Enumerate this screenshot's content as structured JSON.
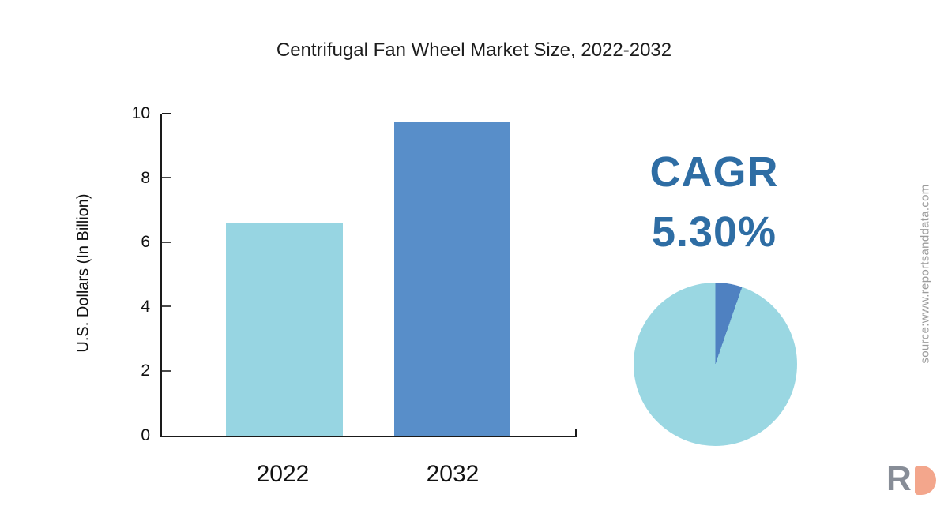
{
  "title": "Centrifugal Fan Wheel Market Size, 2022-2032",
  "cagr": {
    "label": "CAGR",
    "value": "5.30%"
  },
  "source": "source:www.reportsanddata.com",
  "logo": {
    "letter": "R"
  },
  "colors": {
    "bar_2022": "#97d5e2",
    "bar_2032": "#588ec9",
    "pie_slice": "#4f81c1",
    "pie_main": "#9ad7e2",
    "accent_blue": "#2e6da4",
    "axis": "#1a1a1a",
    "source_text": "#9b9b9b",
    "logo_gray": "#878d97",
    "logo_orange": "#f3a68c"
  },
  "chart_data": [
    {
      "type": "bar",
      "title": "Centrifugal Fan Wheel Market Size, 2022-2032",
      "categories": [
        "2022",
        "2032"
      ],
      "values": [
        6.6,
        9.75
      ],
      "xlabel": "",
      "ylabel": "U.S. Dollars (In Billion)",
      "ylim": [
        0,
        10
      ],
      "yticks": [
        0,
        2,
        4,
        6,
        8,
        10
      ],
      "bar_colors": [
        "#97d5e2",
        "#588ec9"
      ],
      "grid": false,
      "legend": false
    },
    {
      "type": "pie",
      "values": [
        5.3,
        94.7
      ],
      "colors": [
        "#4f81c1",
        "#9ad7e2"
      ],
      "start_angle_deg": 0
    }
  ]
}
